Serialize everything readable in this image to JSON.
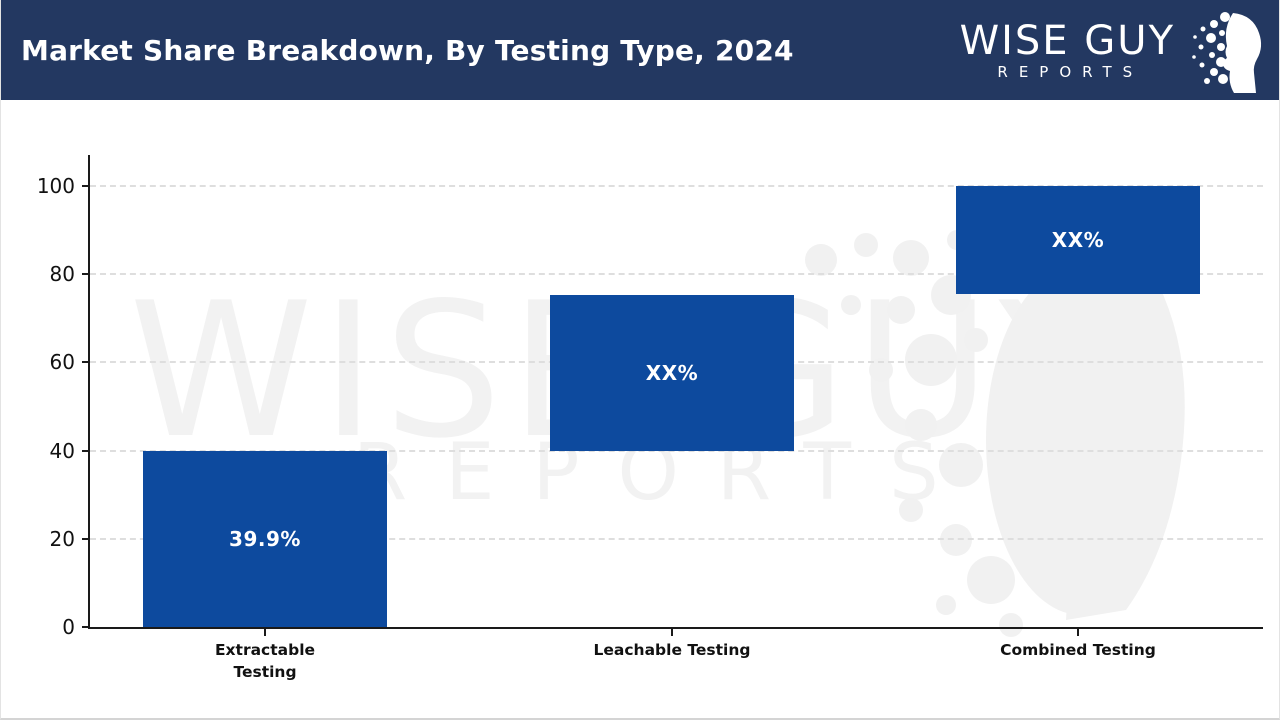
{
  "header": {
    "title": "Market Share Breakdown, By Testing Type, 2024",
    "background_color": "#233861",
    "logo": {
      "line1": "WISE GUY",
      "line2": "REPORTS"
    }
  },
  "watermark": {
    "line1": "WISE GUY",
    "line2": "REPORTS"
  },
  "chart_data": {
    "type": "bar",
    "subtype": "waterfall",
    "title": "Market Share Breakdown, By Testing Type, 2024",
    "categories": [
      "Extractable\nTesting",
      "Leachable Testing",
      "Combined Testing"
    ],
    "segments": [
      {
        "category": "Extractable Testing",
        "start": 0,
        "end": 39.9,
        "label": "39.9%"
      },
      {
        "category": "Leachable Testing",
        "start": 40,
        "end": 75.3,
        "label": "XX%"
      },
      {
        "category": "Combined Testing",
        "start": 75.6,
        "end": 100,
        "label": "XX%"
      }
    ],
    "xlabel": "",
    "ylabel": "",
    "yticks": [
      0,
      20,
      40,
      60,
      80,
      100
    ],
    "ylim": [
      0,
      107
    ],
    "grid": "dashed-horizontal",
    "legend": "none",
    "bar_color": "#0d4a9e",
    "bar_label_color": "#ffffff",
    "axis_color": "#1a1a1a",
    "grid_color": "#dedede",
    "watermark_color": "#f2f2f2"
  }
}
